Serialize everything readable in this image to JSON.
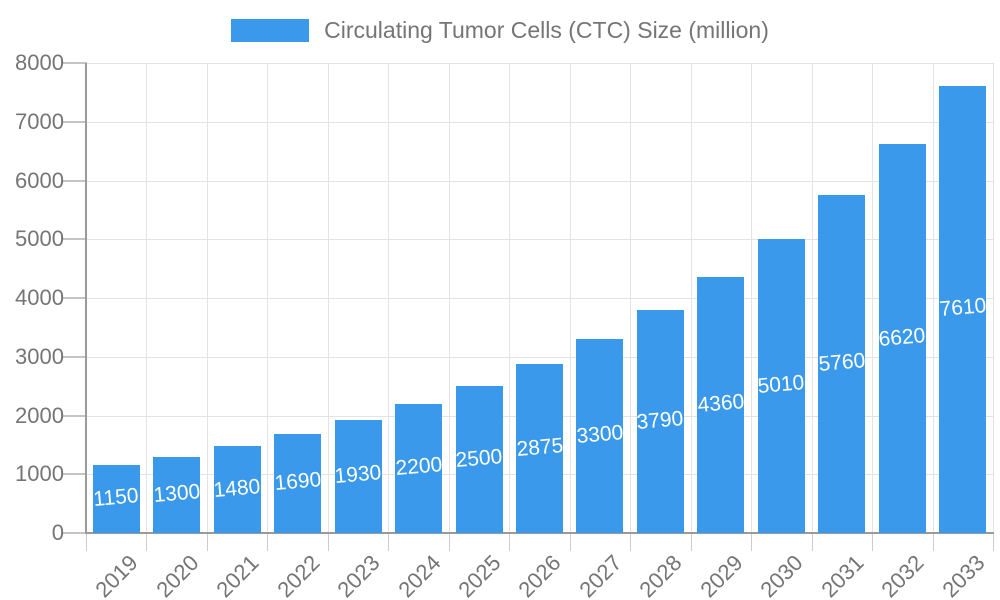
{
  "legend": {
    "label": "Circulating Tumor Cells (CTC) Size (million)",
    "position": "top"
  },
  "colors": {
    "bar": "#3A99EA",
    "axis_text": "#757575",
    "grid_line": "#E3E3E3",
    "axis_line": "#9A9A9A",
    "y_tick": "#C4C4C4",
    "x_tick": "#CCCCCC",
    "data_label": "#FFFFFF",
    "background": "#FFFFFF"
  },
  "chart_data": {
    "type": "bar",
    "title": "",
    "series_name": "Circulating Tumor Cells (CTC) Size (million)",
    "categories": [
      "2019",
      "2020",
      "2021",
      "2022",
      "2023",
      "2024",
      "2025",
      "2026",
      "2027",
      "2028",
      "2029",
      "2030",
      "2031",
      "2032",
      "2033"
    ],
    "values": [
      1150,
      1300,
      1480,
      1690,
      1930,
      2200,
      2500,
      2875,
      3300,
      3790,
      4360,
      5010,
      5760,
      6620,
      7610
    ],
    "xlabel": "",
    "ylabel": "",
    "ylim": [
      0,
      8000
    ],
    "y_tick_step": 1000,
    "y_tick_labels": [
      "0",
      "1000",
      "2000",
      "3000",
      "4000",
      "5000",
      "6000",
      "7000",
      "8000"
    ],
    "grid": true,
    "legend_position": "top",
    "x_tick_label_rotation_deg": -45,
    "data_label_position": "inside-center",
    "data_label_rotation_deg": -5
  }
}
